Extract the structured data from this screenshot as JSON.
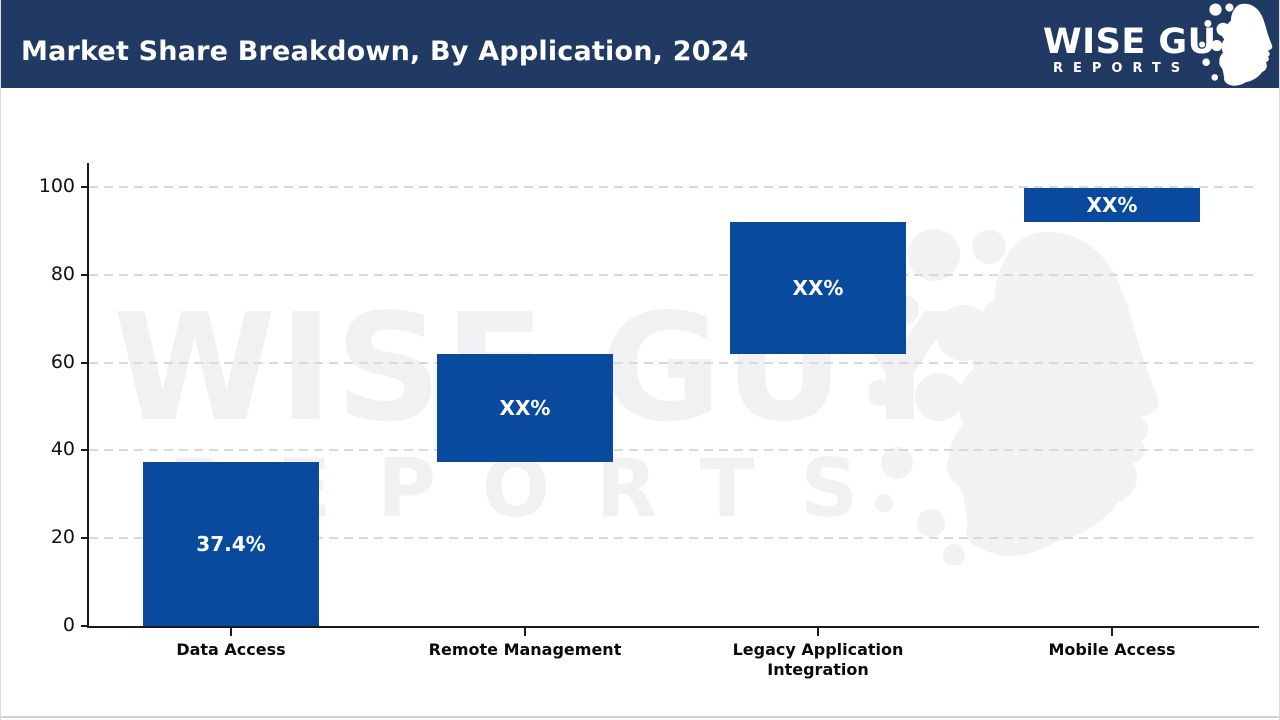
{
  "header": {
    "title": "Market Share Breakdown, By Application, 2024",
    "logo": {
      "name": "WISE GUY",
      "subtext": "REPORTS"
    }
  },
  "watermark": {
    "line1": "WISE GUY",
    "line2": "REPORTS"
  },
  "chart_data": {
    "type": "bar",
    "subtype": "waterfall (stacked market-share segments)",
    "title": "Market Share Breakdown, By Application, 2024",
    "xlabel": "",
    "ylabel": "",
    "categories": [
      "Data Access",
      "Remote Management",
      "Legacy Application\nIntegration",
      "Mobile Access"
    ],
    "segments": [
      {
        "category": "Data Access",
        "start": 0,
        "end": 37.4,
        "label": "37.4%"
      },
      {
        "category": "Remote Management",
        "start": 37.4,
        "end": 62,
        "label": "XX%"
      },
      {
        "category": "Legacy Application Integration",
        "start": 62,
        "end": 92,
        "label": "XX%"
      },
      {
        "category": "Mobile Access",
        "start": 92,
        "end": 99.8,
        "label": "XX%"
      }
    ],
    "yticks": [
      0,
      20,
      40,
      60,
      80,
      100
    ],
    "ylim": [
      0,
      105
    ],
    "grid": true,
    "legend": "none",
    "bar_color": "#0a4a9e",
    "header_color": "#203a64",
    "gridline_color": "#d9d9d9",
    "watermark_color": "#f0f1f3"
  }
}
